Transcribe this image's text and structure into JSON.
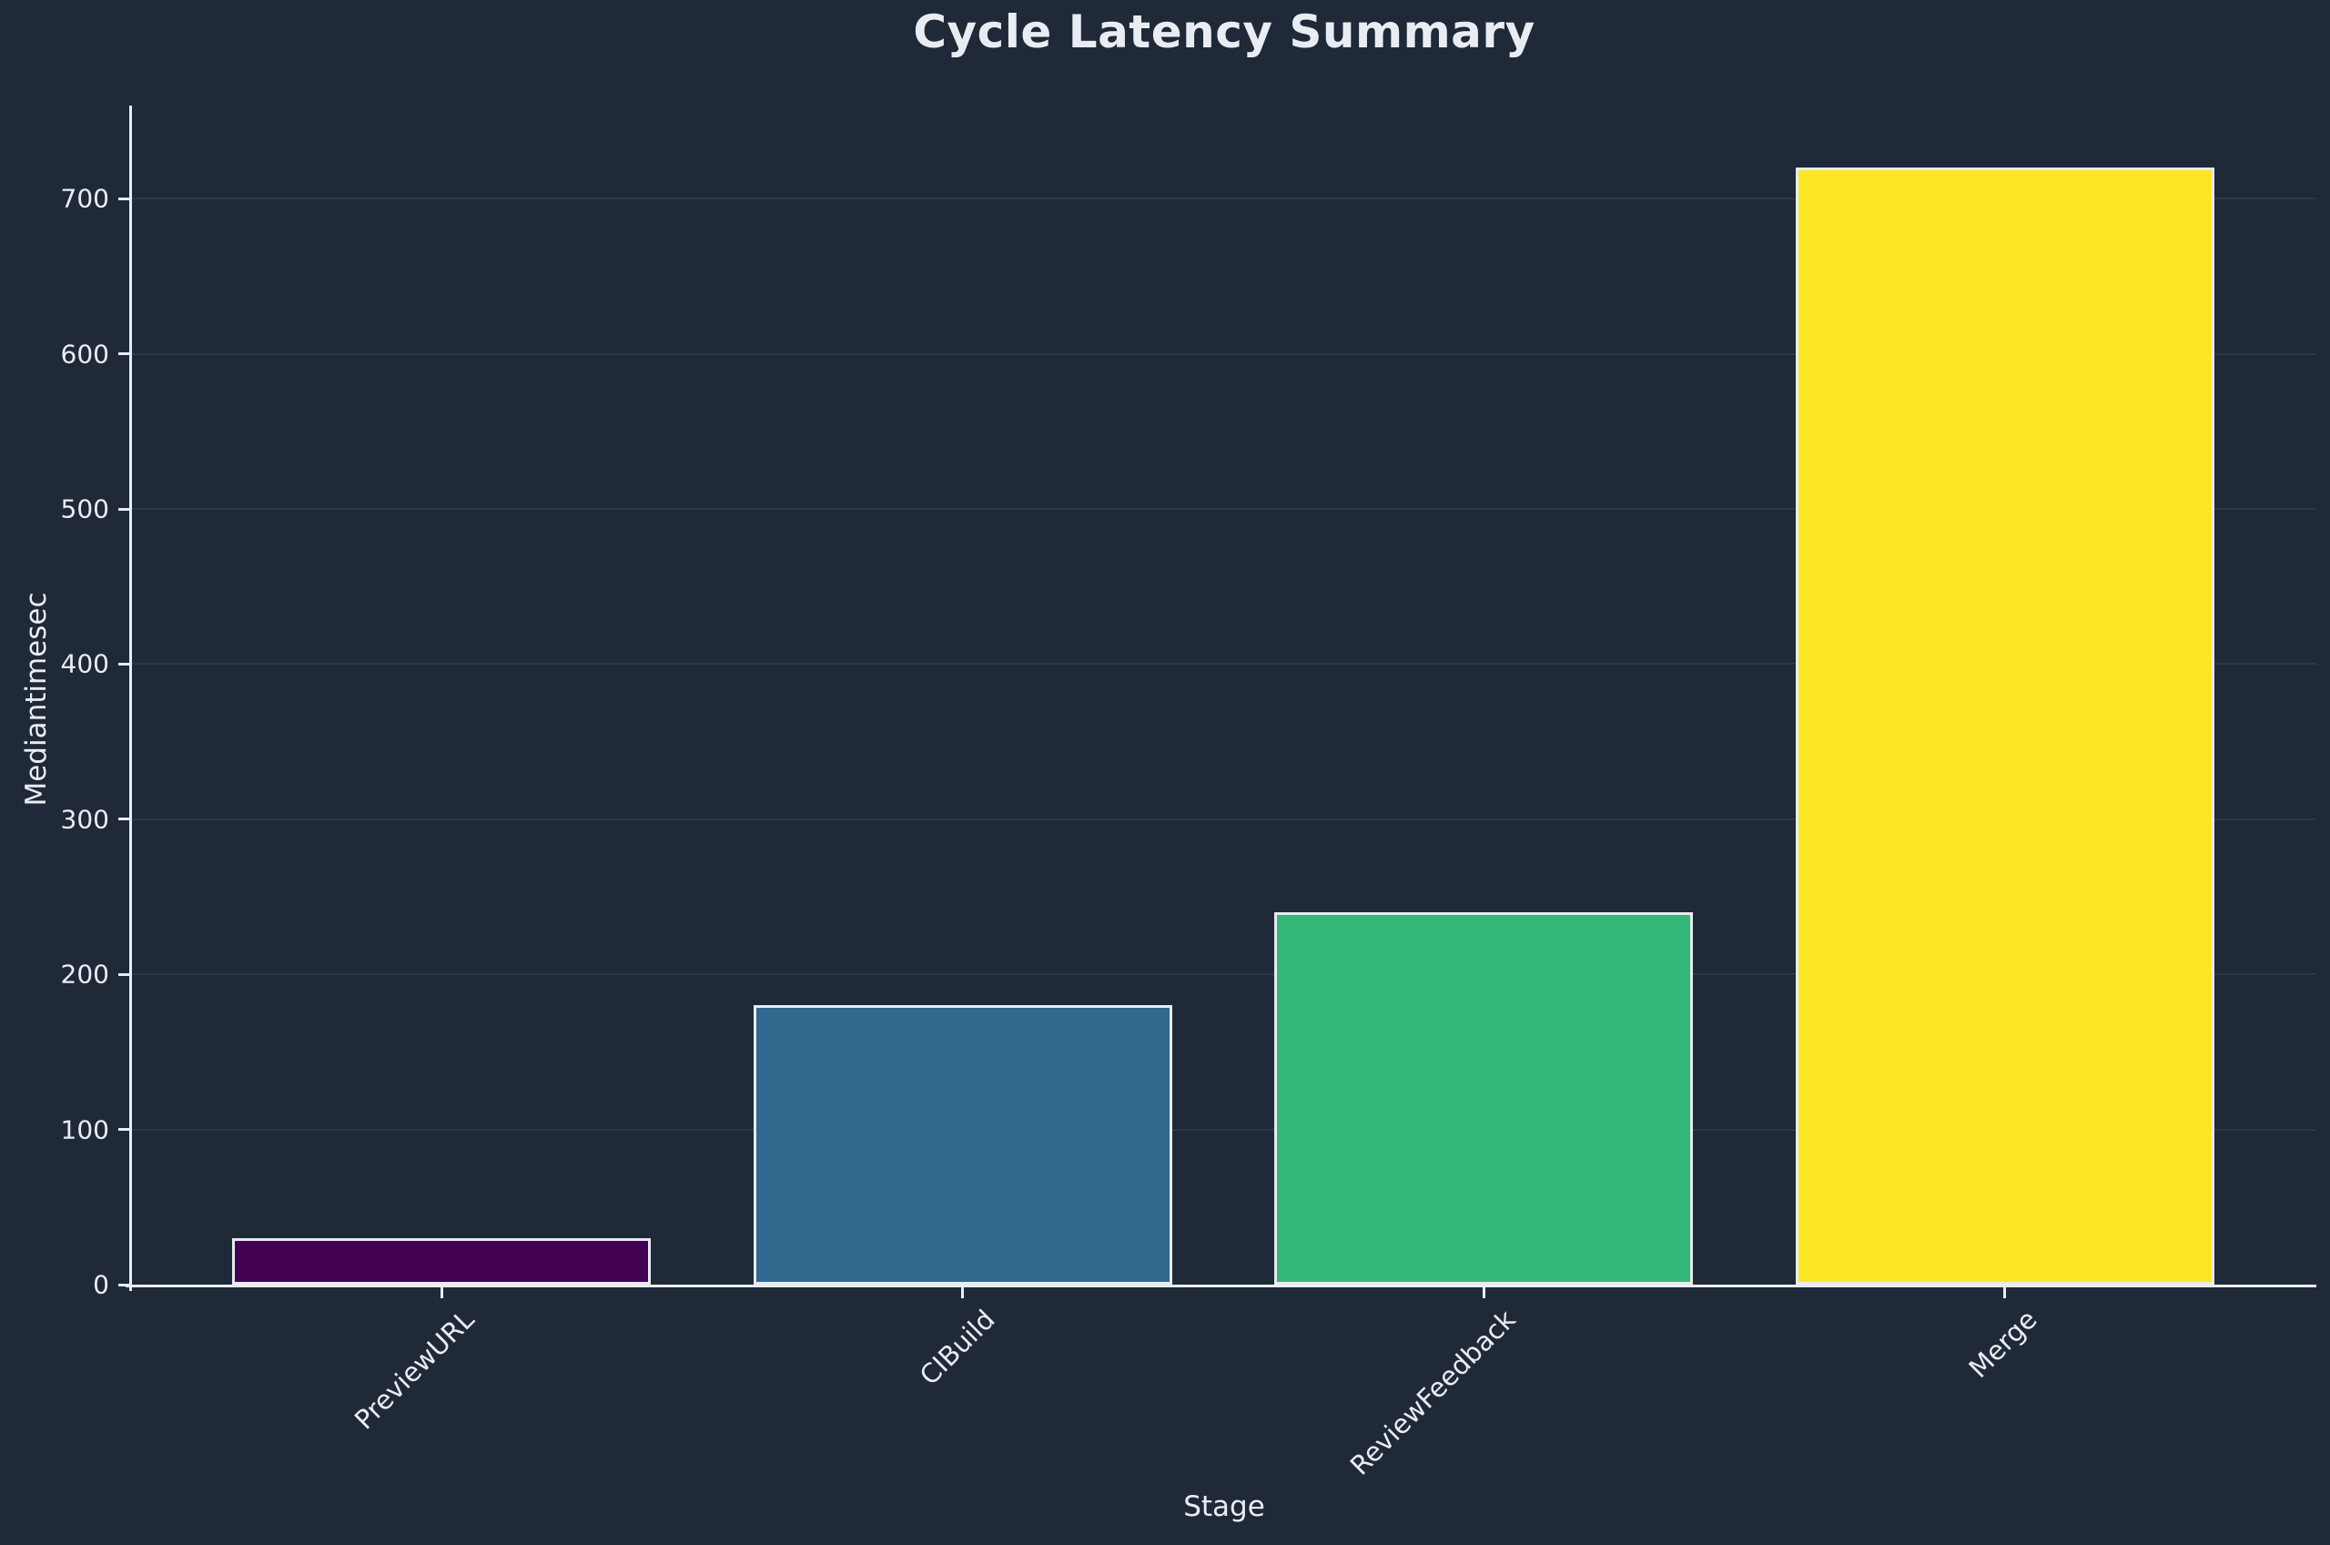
{
  "chart": {
    "title": "Cycle Latency Summary",
    "xlabel": "Stage",
    "ylabel": "Mediantimesec"
  },
  "chart_data": {
    "type": "bar",
    "title": "Cycle Latency Summary",
    "xlabel": "Stage",
    "ylabel": "Mediantimesec",
    "categories": [
      "PreviewURL",
      "CIBuild",
      "ReviewFeedback",
      "Merge"
    ],
    "values": [
      30,
      180,
      240,
      720
    ],
    "ylim": [
      0,
      760
    ],
    "yticks": [
      0,
      100,
      200,
      300,
      400,
      500,
      600,
      700
    ],
    "grid": true,
    "legend": "none",
    "x_tick_rotation_deg": 45,
    "bar_colors": [
      "#440154",
      "#31688e",
      "#35b779",
      "#fde725"
    ],
    "bar_edge_color": "#e6ebf1",
    "background_color": "#1f2937",
    "text_color": "#e9edf3",
    "axis_color": "#e9edf3",
    "gridline_color": "rgba(255,255,255,0.07)"
  }
}
